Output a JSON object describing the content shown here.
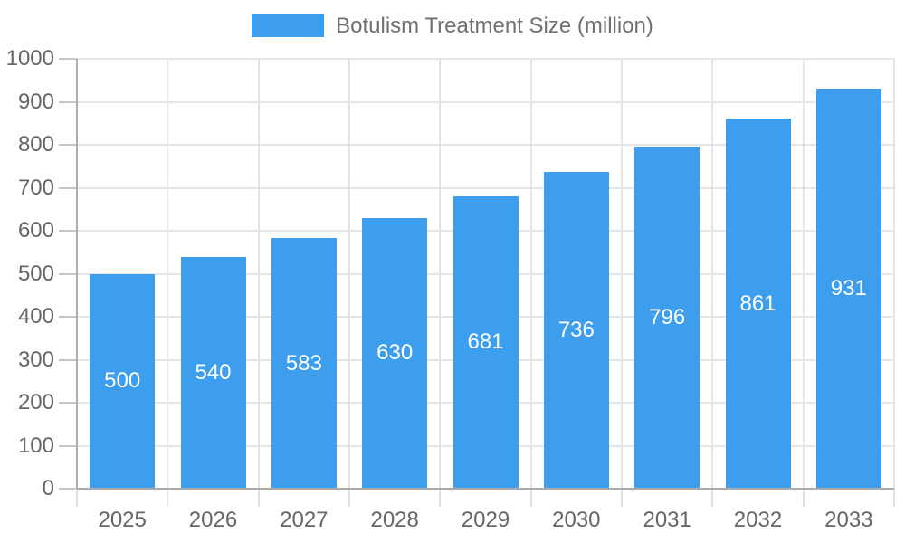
{
  "chart_data": {
    "type": "bar",
    "title": "Botulism Treatment Size (million)",
    "legend_entries": [
      "Botulism Treatment Size (million)"
    ],
    "legend_position": "top-center",
    "categories": [
      "2025",
      "2026",
      "2027",
      "2028",
      "2029",
      "2030",
      "2031",
      "2032",
      "2033"
    ],
    "values": [
      500,
      540,
      583,
      630,
      681,
      736,
      796,
      861,
      931
    ],
    "value_labels_shown_inside_bars": true,
    "xlabel": "",
    "ylabel": "",
    "ylim": [
      0,
      1000
    ],
    "y_ticks": [
      0,
      100,
      200,
      300,
      400,
      500,
      600,
      700,
      800,
      900,
      1000
    ],
    "grid": true,
    "colors": {
      "bar": "#3C9EED",
      "bar_value_label": "#FFFFFF",
      "axis_tick_label": "#666666",
      "legend_text": "#707070",
      "gridline": "#E5E5E5",
      "axis_line": "#ABABAB"
    }
  }
}
